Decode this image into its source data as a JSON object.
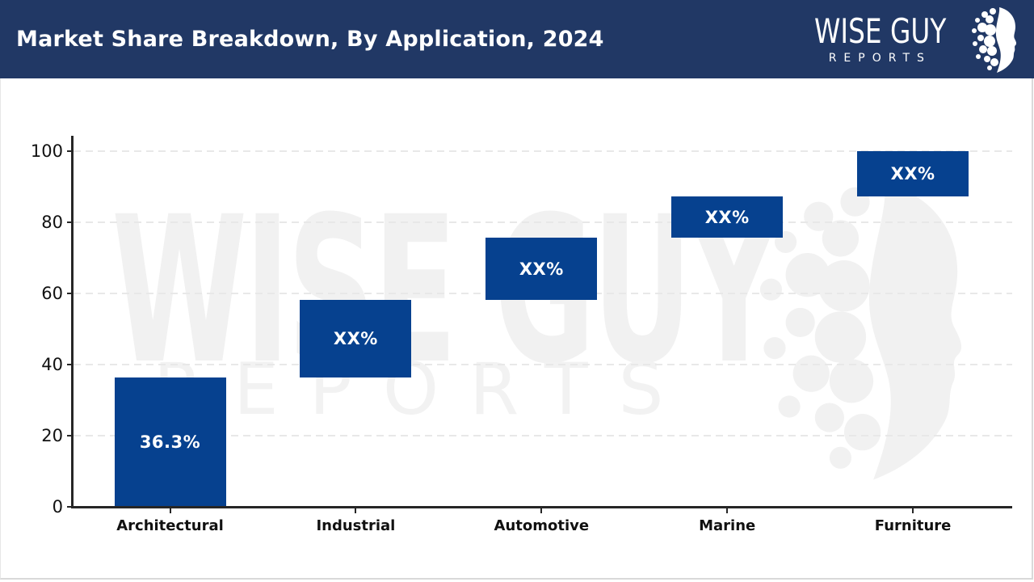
{
  "header": {
    "title": "Market Share Breakdown, By Application, 2024",
    "logo": {
      "wordmark": "WISE GUY",
      "subtext": "REPORTS"
    }
  },
  "watermark": {
    "wordmark": "WISE GUY",
    "subtext": "REPORTS"
  },
  "chart_data": {
    "type": "bar",
    "subtype": "floating-segment-waterfall",
    "title": "Market Share Breakdown, By Application, 2024",
    "categories": [
      "Architectural",
      "Industrial",
      "Automotive",
      "Marine",
      "Furniture"
    ],
    "segments": [
      {
        "category": "Architectural",
        "start": 0,
        "end": 36.3,
        "label": "36.3%"
      },
      {
        "category": "Industrial",
        "start": 36.3,
        "end": 58.1,
        "label": "XX%"
      },
      {
        "category": "Automotive",
        "start": 58.1,
        "end": 75.6,
        "label": "XX%"
      },
      {
        "category": "Marine",
        "start": 75.6,
        "end": 87.3,
        "label": "XX%"
      },
      {
        "category": "Furniture",
        "start": 87.3,
        "end": 100,
        "label": "XX%"
      }
    ],
    "xlabel": "",
    "ylabel": "",
    "ylim": [
      0,
      105
    ],
    "yticks": [
      0,
      20,
      40,
      60,
      80,
      100
    ],
    "grid": "horizontal-dashed",
    "legend": "none",
    "bar_color": "#06418f",
    "bar_label_color": "#ffffff"
  },
  "colors": {
    "header_bg": "#213865",
    "bar": "#06418f",
    "axis": "#262626",
    "grid": "#e8e8e8",
    "watermark": "#f1f1f1",
    "frame": "#d9d9d9"
  }
}
